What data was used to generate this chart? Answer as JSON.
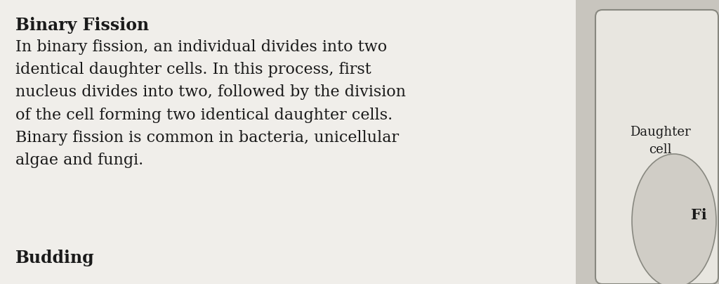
{
  "bg_color": "#e8e6e0",
  "main_bg": "#f0eeea",
  "title": "Binary Fission",
  "body_text": "In binary fission, an individual divides into two\nidentical daughter cells. In this process, first\nnucleus divides into two, followed by the division\nof the cell forming two identical daughter cells.\nBinary fission is common in bacteria, unicellular\nalgae and fungi.",
  "footer_text": "Budding",
  "sidebar_label1": "Daughter",
  "sidebar_label2": "cell",
  "sidebar_label3": "Fi",
  "title_fontsize": 17,
  "body_fontsize": 16,
  "footer_fontsize": 17,
  "sidebar_fontsize": 13,
  "text_color": "#1a1a1a",
  "sidebar_bg": "#c8c5be",
  "box_bg": "#e8e6e0",
  "box_edge": "#888880",
  "ellipse_color": "#d0cdc6"
}
